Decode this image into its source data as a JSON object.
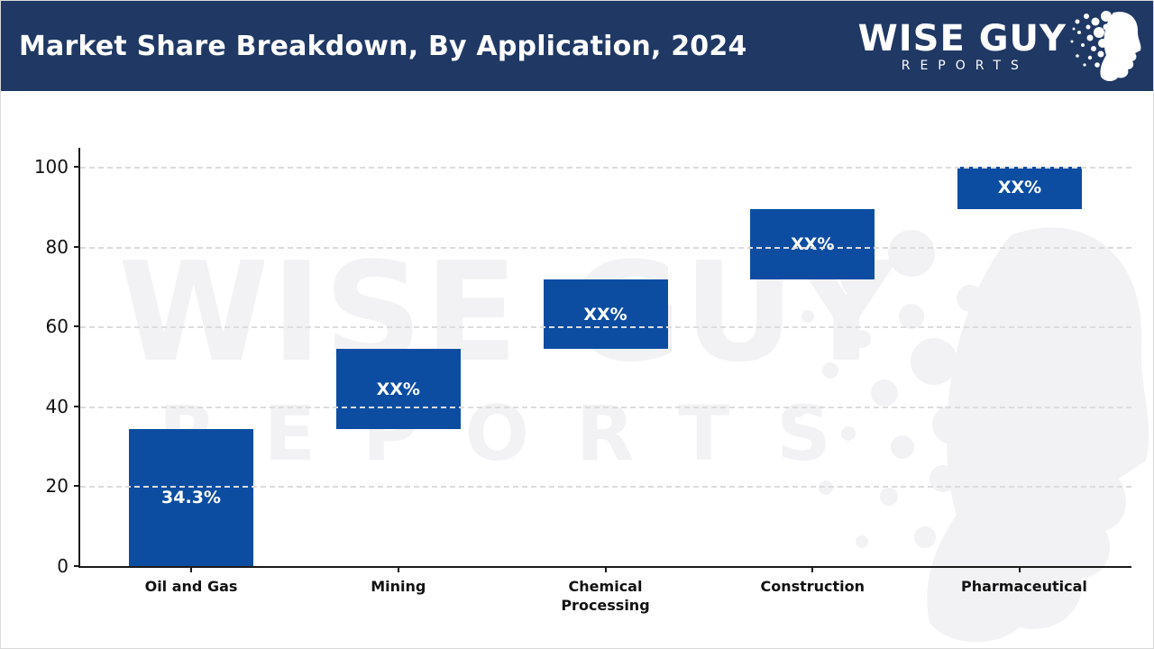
{
  "header": {
    "title": "Market Share Breakdown, By Application, 2024",
    "logo": {
      "line1": "WISE GUY",
      "line2": "REPORTS"
    }
  },
  "watermark": {
    "line1": "WISE GUY",
    "line2": "REPORTS"
  },
  "colors": {
    "header_bg": "#1f3864",
    "bar": "#0c4da2",
    "grid": "#dcdcdc",
    "axis": "#1a1a1a",
    "bar_label": "#ffffff",
    "watermark": "#f2f2f4"
  },
  "chart_data": {
    "type": "bar",
    "subtype": "waterfall",
    "title": "Market Share Breakdown, By Application, 2024",
    "xlabel": "",
    "ylabel": "",
    "categories": [
      "Oil and Gas",
      "Mining",
      "Chemical Processing",
      "Construction",
      "Pharmaceutical"
    ],
    "segments": [
      {
        "category": "Oil and Gas",
        "start": 0,
        "end": 34.3,
        "label": "34.3%"
      },
      {
        "category": "Mining",
        "start": 34.3,
        "end": 54.3,
        "label": "XX%"
      },
      {
        "category": "Chemical Processing",
        "start": 54.3,
        "end": 71.8,
        "label": "XX%"
      },
      {
        "category": "Construction",
        "start": 71.8,
        "end": 89.5,
        "label": "XX%"
      },
      {
        "category": "Pharmaceutical",
        "start": 89.5,
        "end": 100,
        "label": "XX%"
      }
    ],
    "yticks": [
      0,
      20,
      40,
      60,
      80,
      100
    ],
    "ylim": [
      0,
      105
    ],
    "grid": "horizontal-dashed",
    "legend": "none"
  }
}
